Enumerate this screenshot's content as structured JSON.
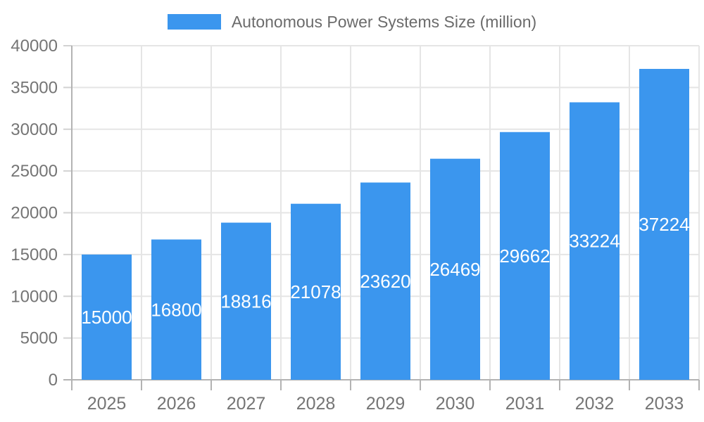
{
  "chart_data": {
    "type": "bar",
    "title": "Autonomous Power Systems Size (million)",
    "legend_position": "top",
    "categories": [
      "2025",
      "2026",
      "2027",
      "2028",
      "2029",
      "2030",
      "2031",
      "2032",
      "2033"
    ],
    "series": [
      {
        "name": "Autonomous Power Systems Size (million)",
        "values": [
          15000,
          16800,
          18816,
          21078,
          23620,
          26469,
          29662,
          33224,
          37224
        ]
      }
    ],
    "bar_value_labels": [
      "15000",
      "16800",
      "18816",
      "21078",
      "23620",
      "26469",
      "29662",
      "33224",
      "37224"
    ],
    "xlabel": "",
    "ylabel": "",
    "ylim": [
      0,
      40000
    ],
    "ytick_step": 5000,
    "ytick_labels": [
      "0",
      "5000",
      "10000",
      "15000",
      "20000",
      "25000",
      "30000",
      "35000",
      "40000"
    ],
    "grid": true,
    "colors": {
      "bar": "#3B96EE",
      "bar_value_label": "#FFFFFF",
      "axis_text": "#757575",
      "title_text": "#6B6B6B",
      "gridline": "#E5E5E5",
      "minor_tick": "#D2D2D2",
      "axis_line": "#B3B3B3",
      "background": "#FFFFFF"
    }
  }
}
